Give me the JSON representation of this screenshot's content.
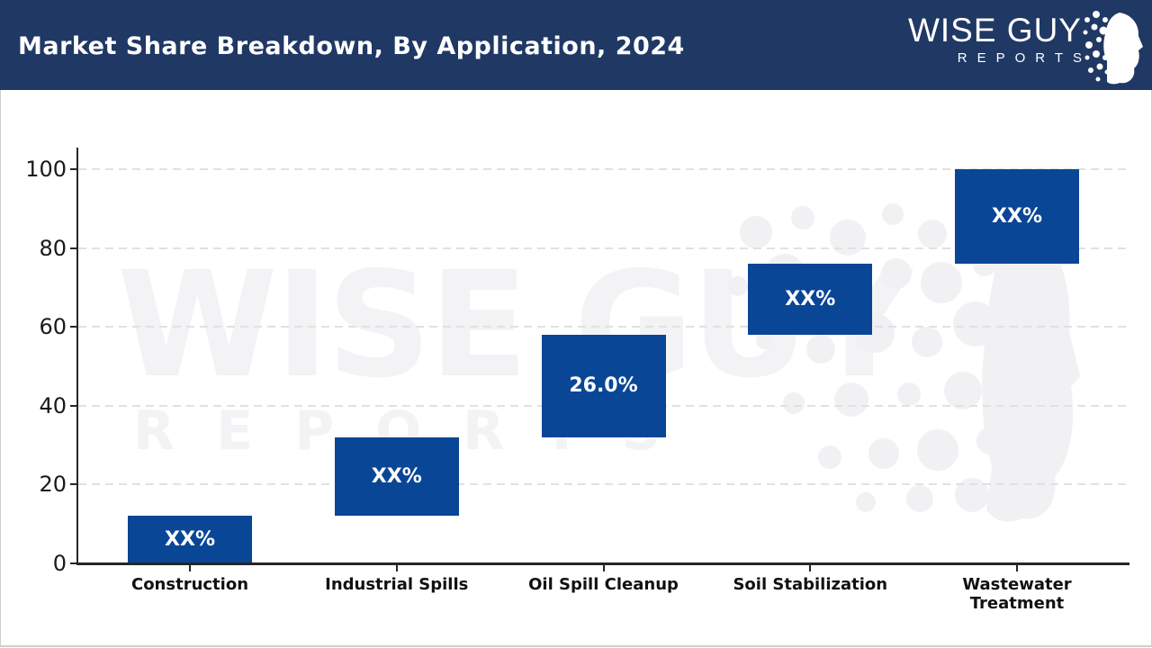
{
  "header": {
    "title": "Market Share Breakdown, By Application, 2024"
  },
  "logo": {
    "line1": "WISE GUY",
    "line2": "REPORTS"
  },
  "watermark": {
    "line1": "WISE GUY",
    "line2": "REPORTS"
  },
  "colors": {
    "header_bg": "#203864",
    "bar_blue": "#0A4696",
    "axis": "#262626",
    "gridline": "#E1E1E1",
    "watermark_gray": "#F3F3F5"
  },
  "chart_data": {
    "type": "bar",
    "subtype": "floating-segment-waterfall",
    "title": "Market Share Breakdown, By Application, 2024",
    "categories": [
      "Construction",
      "Industrial Spills",
      "Oil Spill Cleanup",
      "Soil Stabilization",
      "Wastewater Treatment"
    ],
    "bars": [
      {
        "category": "Construction",
        "label": "XX%",
        "start": 0,
        "end": 12
      },
      {
        "category": "Industrial Spills",
        "label": "XX%",
        "start": 12,
        "end": 32
      },
      {
        "category": "Oil Spill Cleanup",
        "label": "26.0%",
        "start": 32,
        "end": 58
      },
      {
        "category": "Soil Stabilization",
        "label": "XX%",
        "start": 58,
        "end": 76
      },
      {
        "category": "Wastewater Treatment",
        "label": "XX%",
        "start": 76,
        "end": 100
      }
    ],
    "revealed_values": {
      "Oil Spill Cleanup": 26.0
    },
    "bar_color": "#0A4696",
    "xlabel": "",
    "ylabel": "",
    "yticks": [
      0,
      20,
      40,
      60,
      80,
      100
    ],
    "ylim": [
      0,
      105
    ],
    "grid": "horizontal-dashed",
    "legend": "none"
  }
}
